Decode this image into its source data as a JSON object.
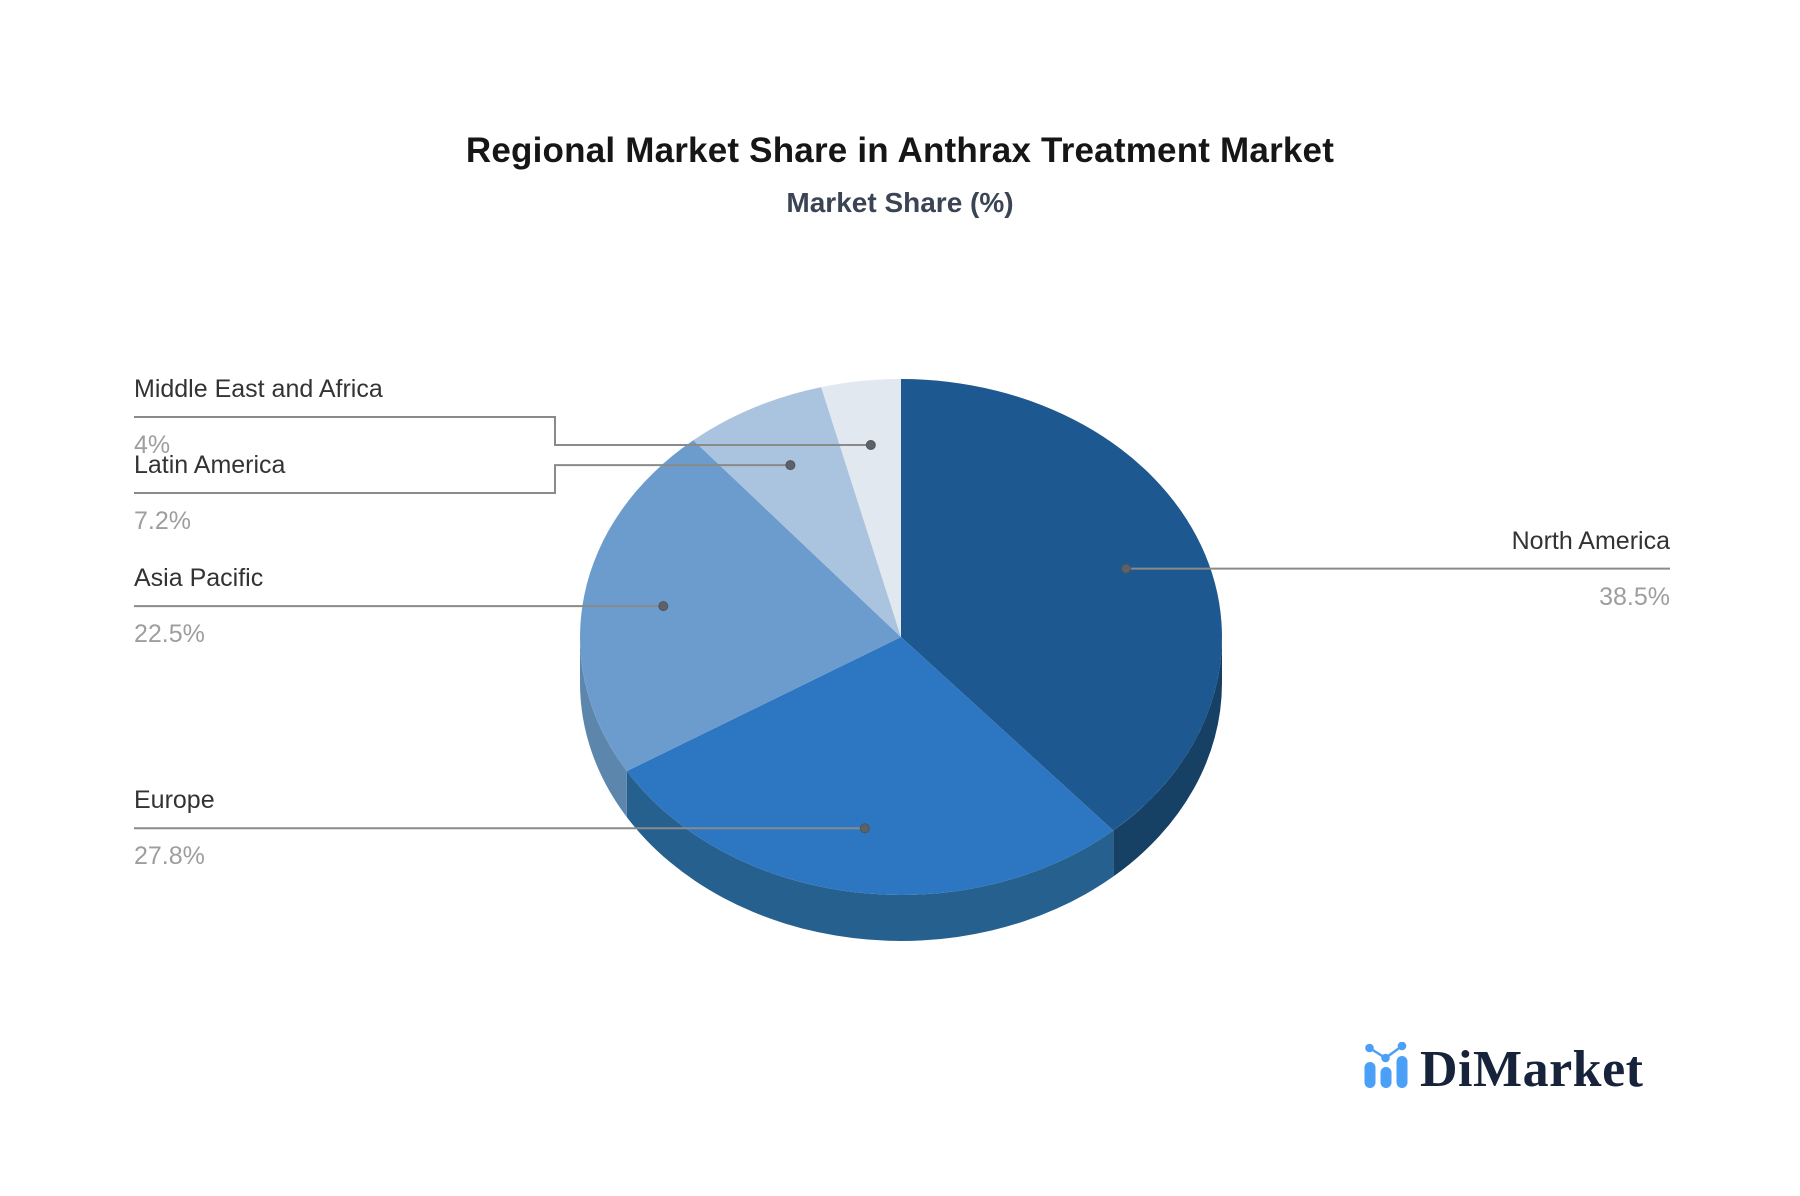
{
  "title": "Regional Market Share in Anthrax Treatment Market",
  "subtitle": "Market Share (%)",
  "brand": {
    "name": "DiMarket",
    "icon": "bar-line-chart-logo-icon",
    "icon_color": "#4aa0f7",
    "text_color": "#16233b"
  },
  "chart_data": {
    "type": "pie",
    "title": "Regional Market Share in Anthrax Treatment Market",
    "subtitle": "Market Share (%)",
    "unit": "%",
    "effect": "3d",
    "direction": "clockwise",
    "start_angle_deg": 0,
    "legend_position": "connector-labels",
    "label_color": "#333333",
    "value_color": "#9e9e9e",
    "connector_color": "#8a8a8a",
    "background_color": "#ffffff",
    "slices": [
      {
        "label": "North America",
        "value": 38.5,
        "display_value": "38.5%",
        "color": "#1e5890",
        "side_color": "#164064"
      },
      {
        "label": "Europe",
        "value": 27.8,
        "display_value": "27.8%",
        "color": "#2d77c2",
        "side_color": "#26608f"
      },
      {
        "label": "Asia Pacific",
        "value": 22.5,
        "display_value": "22.5%",
        "color": "#6c9cce",
        "side_color": "#5d86ac"
      },
      {
        "label": "Latin America",
        "value": 7.2,
        "display_value": "7.2%",
        "color": "#aac3de",
        "side_color": "#93aecf"
      },
      {
        "label": "Middle East and Africa",
        "value": 4,
        "display_value": "4%",
        "color": "#e2e8f0",
        "side_color": "#c7d3e2"
      }
    ]
  }
}
